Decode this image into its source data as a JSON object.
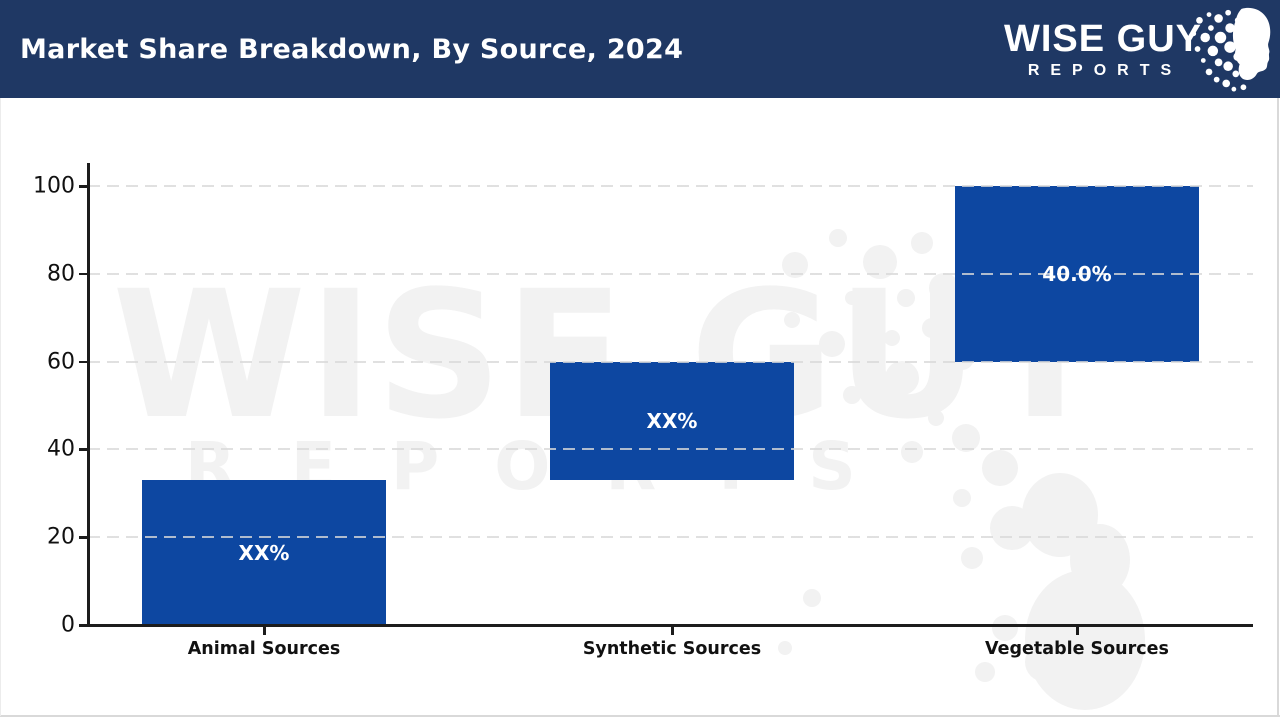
{
  "header": {
    "title": "Market Share Breakdown, By Source, 2024",
    "logo": {
      "name": "WISE GUY",
      "subname": "REPORTS"
    }
  },
  "watermark": {
    "line1": "WISE GUY",
    "line2": "REPORTS"
  },
  "colors": {
    "header_bg": "#1f3864",
    "bar_fill": "#0d47a1",
    "bar_label": "#ffffff",
    "grid": "#d9d9d9",
    "axis": "#1c1c1c",
    "tick_text": "#111111",
    "watermark": "#f2f2f2",
    "frame": "#d9d9d9"
  },
  "chart_data": {
    "type": "bar",
    "subtype": "waterfall",
    "title": "Market Share Breakdown, By Source, 2024",
    "categories": [
      "Animal Sources",
      "Synthetic Sources",
      "Vegetable Sources"
    ],
    "segments": [
      {
        "category": "Animal Sources",
        "start": 0,
        "end": 33,
        "value": 33,
        "label": "XX%"
      },
      {
        "category": "Synthetic Sources",
        "start": 33,
        "end": 60,
        "value": 27,
        "label": "XX%"
      },
      {
        "category": "Vegetable Sources",
        "start": 60,
        "end": 100,
        "value": 40,
        "label": "40.0%"
      }
    ],
    "xlabel": "",
    "ylabel": "",
    "yticks": [
      0,
      20,
      40,
      60,
      80,
      100
    ],
    "ylim": [
      0,
      105
    ],
    "grid": "horizontal-dashed",
    "legend": "none"
  }
}
